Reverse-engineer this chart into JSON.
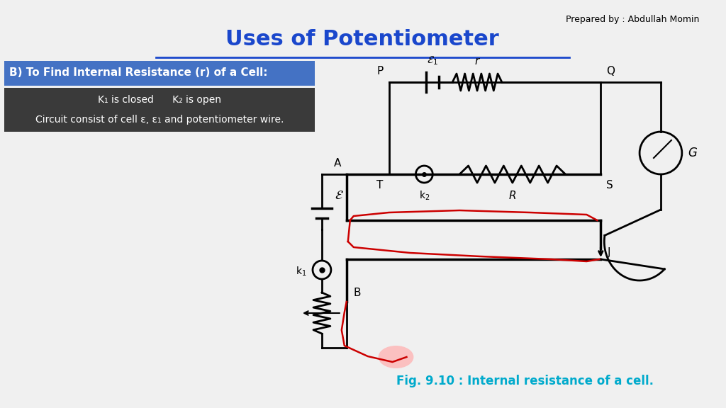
{
  "title": "Uses of Potentiometer",
  "title_color": "#1a47cc",
  "prepared_by": "Prepared by : Abdullah Momin",
  "subtitle_bg": "#4472c4",
  "subtitle_text": "B) To Find Internal Resistance (r) of a Cell:",
  "desc_bg": "#3a3a3a",
  "desc_line1": "K₁ is closed      K₂ is open",
  "desc_line2": "Circuit consist of cell ε, ε₁ and potentiometer wire.",
  "fig_caption": "Fig. 9.10 : Internal resistance of a cell.",
  "fig_caption_color": "#00aacc",
  "bg_color": "#f0f0f0"
}
